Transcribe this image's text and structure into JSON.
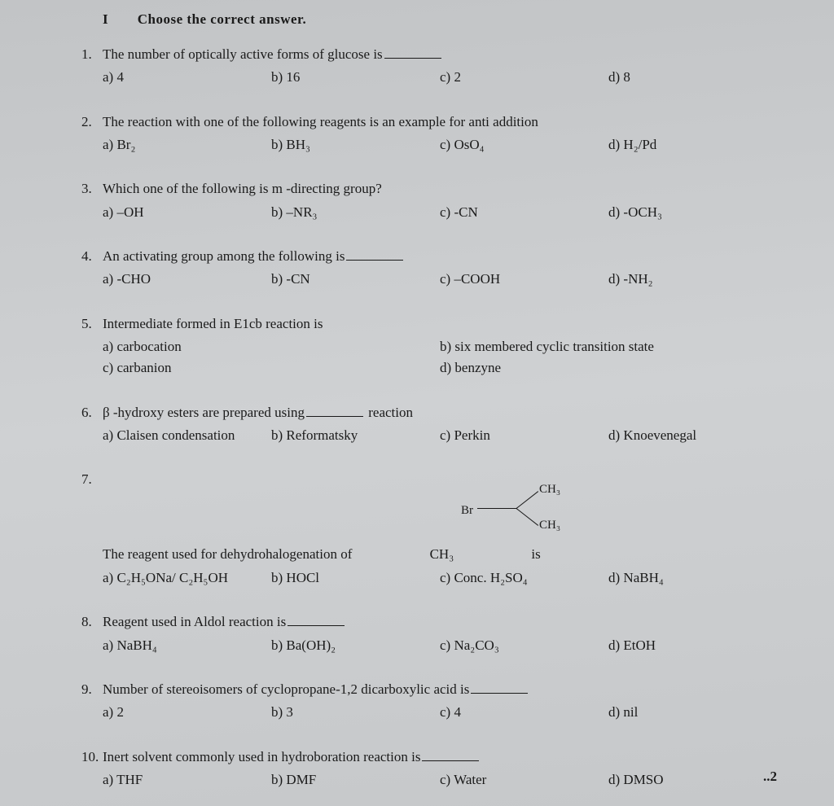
{
  "header": {
    "roman": "I",
    "title": "Choose the correct answer."
  },
  "questions": [
    {
      "num": "1.",
      "stem_pre": "The number of optically active forms of glucose is",
      "blank": true,
      "stem_post": "",
      "layout": "four-col",
      "opts": [
        "a) 4",
        "b) 16",
        "c) 2",
        "d) 8"
      ]
    },
    {
      "num": "2.",
      "stem_pre": "The reaction with one of the following reagents  is an example for anti addition",
      "blank": false,
      "layout": "four-col",
      "opts": [
        "a) Br₂",
        "b) BH₃",
        "c) OsO₄",
        "d) H₂/Pd"
      ]
    },
    {
      "num": "3.",
      "stem_pre": "Which one of the following is m -directing group?",
      "blank": false,
      "layout": "four-col",
      "opts": [
        "a) –OH",
        "b) –NR₃",
        "c)  -CN",
        "d)  -OCH₃"
      ]
    },
    {
      "num": "4.",
      "stem_pre": "An activating group among the following is",
      "blank": true,
      "stem_post": "",
      "layout": "four-col",
      "opts": [
        "a) -CHO",
        "b) -CN",
        "c) –COOH",
        "d)  -NH₂"
      ]
    },
    {
      "num": "5.",
      "stem_pre": "Intermediate formed in  E1cb reaction is",
      "blank": false,
      "layout": "two-col",
      "opts": [
        "a) carbocation",
        "b) six membered cyclic transition state",
        "c) carbanion",
        "d) benzyne"
      ]
    },
    {
      "num": "6.",
      "stem_pre": "β -hydroxy esters are prepared using",
      "blank": true,
      "stem_post": "reaction",
      "layout": "four-col",
      "opts": [
        "a) Claisen condensation",
        "b) Reformatsky",
        "c) Perkin",
        "d) Knoevenegal"
      ]
    },
    {
      "num": "7.",
      "has_structure": true,
      "structure": {
        "br": "Br",
        "ch3_top": "CH₃",
        "ch3_bot": "CH₃"
      },
      "stem_pre": "The reagent used for  dehydrohalogenation  of",
      "stem_post": "is",
      "layout": "four-col",
      "opts": [
        "a) C₂H₅ONa/ C₂H₅OH",
        "b) HOCl",
        "c) Conc. H₂SO₄",
        "d) NaBH₄"
      ]
    },
    {
      "num": "8.",
      "stem_pre": "Reagent used in Aldol reaction is",
      "blank": true,
      "stem_post": "",
      "layout": "four-col",
      "opts": [
        "a) NaBH₄",
        "b) Ba(OH)₂",
        "c) Na₂CO₃",
        "d) EtOH"
      ]
    },
    {
      "num": "9.",
      "stem_pre": "Number of stereoisomers of cyclopropane-1,2 dicarboxylic acid is",
      "blank": true,
      "stem_post": "",
      "layout": "four-col",
      "opts": [
        "a) 2",
        "b) 3",
        "c) 4",
        "d) nil"
      ]
    },
    {
      "num": "10.",
      "stem_pre": "Inert solvent commonly used in hydroboration reaction is",
      "blank": true,
      "stem_post": "",
      "layout": "four-col",
      "opts": [
        "a) THF",
        "b) DMF",
        "c) Water",
        "d) DMSO"
      ]
    }
  ],
  "footer": "..2"
}
